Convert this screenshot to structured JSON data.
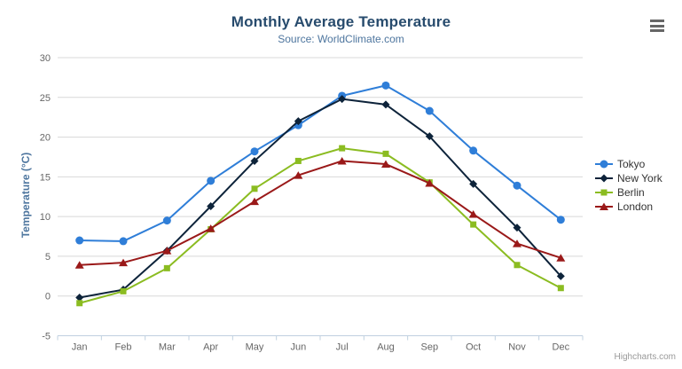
{
  "chart_data": {
    "type": "line",
    "title": "Monthly Average Temperature",
    "subtitle": "Source: WorldClimate.com",
    "xlabel": "",
    "ylabel": "Temperature (°C)",
    "ylim": [
      -5,
      30
    ],
    "ytick_interval": 5,
    "grid": true,
    "legend_position": "right-middle",
    "categories": [
      "Jan",
      "Feb",
      "Mar",
      "Apr",
      "May",
      "Jun",
      "Jul",
      "Aug",
      "Sep",
      "Oct",
      "Nov",
      "Dec"
    ],
    "series": [
      {
        "name": "Tokyo",
        "color": "#2f7ed8",
        "marker": "circle",
        "values": [
          7.0,
          6.9,
          9.5,
          14.5,
          18.2,
          21.5,
          25.2,
          26.5,
          23.3,
          18.3,
          13.9,
          9.6
        ]
      },
      {
        "name": "New York",
        "color": "#0d233a",
        "marker": "diamond",
        "values": [
          -0.2,
          0.8,
          5.7,
          11.3,
          17.0,
          22.0,
          24.8,
          24.1,
          20.1,
          14.1,
          8.6,
          2.5
        ]
      },
      {
        "name": "Berlin",
        "color": "#8bbc21",
        "marker": "square",
        "values": [
          -0.9,
          0.6,
          3.5,
          8.4,
          13.5,
          17.0,
          18.6,
          17.9,
          14.3,
          9.0,
          3.9,
          1.0
        ]
      },
      {
        "name": "London",
        "color": "#9a1919",
        "marker": "triangle",
        "values": [
          3.9,
          4.2,
          5.7,
          8.5,
          11.9,
          15.2,
          17.0,
          16.6,
          14.2,
          10.3,
          6.6,
          4.8
        ]
      }
    ],
    "y_axis_labels": [
      "-5",
      "0",
      "5",
      "10",
      "15",
      "20",
      "25",
      "30"
    ]
  },
  "colors": {
    "title": "#274b6d",
    "subtitle": "#4d759e",
    "axis_title": "#4d759e",
    "axis_labels": "#666666",
    "grid_line": "#d8d8d8",
    "axis_line": "#c0d0e0",
    "legend_text": "#333333",
    "credits": "#999999",
    "export_icon": "#666666"
  },
  "credits": {
    "label": "Highcharts.com"
  }
}
